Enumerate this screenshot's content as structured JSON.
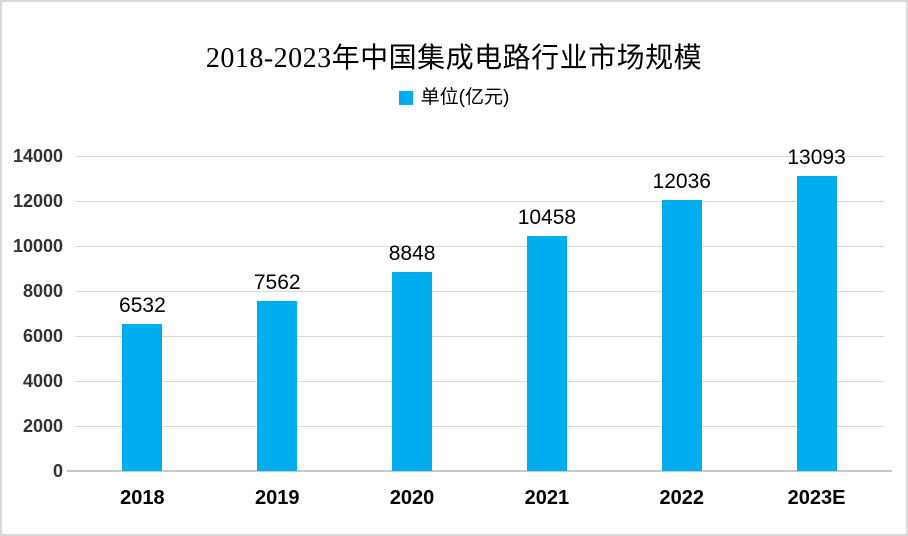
{
  "chart": {
    "title": "2018-2023年中国集成电路行业市场规模",
    "legend_label": "单位(亿元)"
  },
  "chart_data": {
    "type": "bar",
    "title": "2018-2023年中国集成电路行业市场规模",
    "legend": [
      "单位(亿元)"
    ],
    "legend_position": "top",
    "categories": [
      "2018",
      "2019",
      "2020",
      "2021",
      "2022",
      "2023E"
    ],
    "values": [
      6532,
      7562,
      8848,
      10458,
      12036,
      13093
    ],
    "xlabel": "",
    "ylabel": "",
    "ylim": [
      0,
      14000
    ],
    "yticks": [
      0,
      2000,
      4000,
      6000,
      8000,
      10000,
      12000,
      14000
    ],
    "grid": true,
    "colors": {
      "bar": "#00AEF0",
      "gridline": "#d9d9d9",
      "axis_line": "#c8c8c8",
      "tick_text": "#333333",
      "label_text": "#000000"
    }
  }
}
